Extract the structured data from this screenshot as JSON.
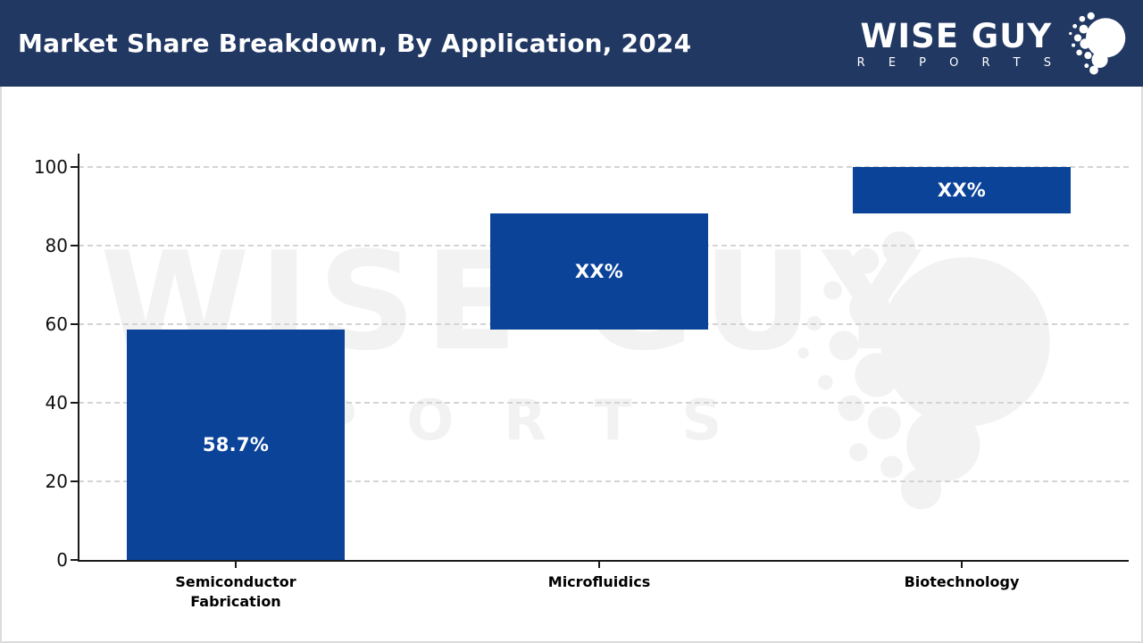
{
  "header": {
    "title": "Market Share Breakdown, By Application, 2024",
    "bg_color": "#213863",
    "logo": {
      "line1": "WISE GUY",
      "line2": "R E P O R T S"
    }
  },
  "watermark": {
    "line1": "WISE GUY",
    "line2": "REPORTS"
  },
  "chart_data": {
    "type": "bar",
    "subtype": "floating-waterfall",
    "title": "Market Share Breakdown, By Application, 2024",
    "categories": [
      "Semiconductor Fabrication",
      "Microfluidics",
      "Biotechnology"
    ],
    "series": [
      {
        "name": "Semiconductor Fabrication",
        "start": 0,
        "end": 58.7,
        "label": "58.7%"
      },
      {
        "name": "Microfluidics",
        "start": 58.7,
        "end": 88.2,
        "label": "XX%"
      },
      {
        "name": "Biotechnology",
        "start": 88.2,
        "end": 100,
        "label": "XX%"
      }
    ],
    "ylim": [
      0,
      100
    ],
    "yticks": [
      "0",
      "20",
      "40",
      "60",
      "80",
      "100"
    ],
    "grid": "horizontal-dashed",
    "legend": "none",
    "bar_color": "#0B4399",
    "grid_color": "#d4d4d4",
    "axis_color": "#1a1a1a"
  }
}
